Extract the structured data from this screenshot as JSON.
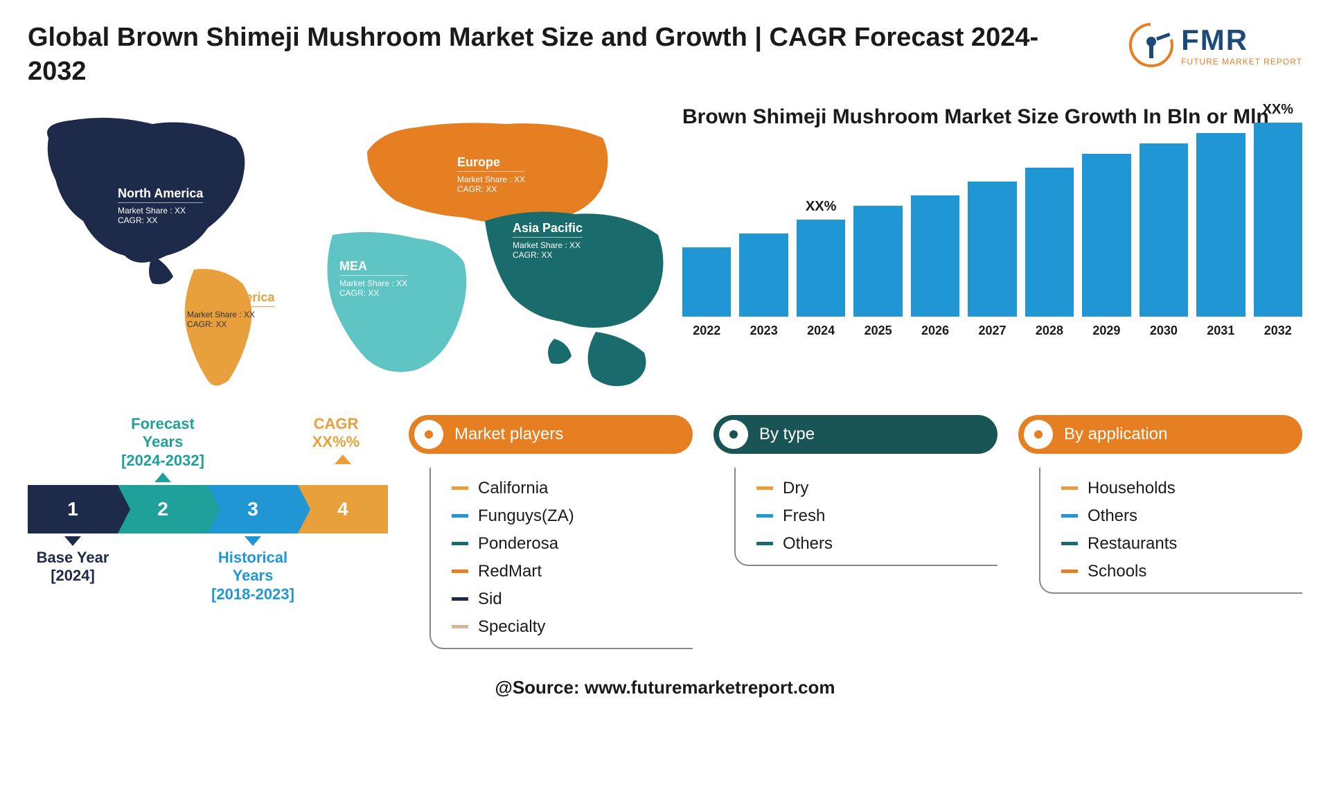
{
  "title": "Global Brown Shimeji Mushroom Market Size and Growth | CAGR Forecast 2024-2032",
  "logo": {
    "main": "FMR",
    "sub": "FUTURE MARKET REPORT"
  },
  "colors": {
    "na": "#1e2a4a",
    "sa": "#e8a03c",
    "eu": "#e67e22",
    "mea": "#5fc4c4",
    "ap": "#1a6b6b",
    "bar": "#2196d4",
    "step1": "#1e2a4a",
    "step2": "#1fa09a",
    "step3": "#2196d4",
    "step4": "#e8a03c",
    "cat1_bg": "#e67e22",
    "cat2_bg": "#1a5555",
    "cat3_bg": "#e67e22",
    "dash_colors": [
      "#e8a03c",
      "#2196d4",
      "#1a6b6b",
      "#e67e22",
      "#1e2a4a",
      "#d4b896"
    ]
  },
  "map": {
    "regions": [
      {
        "key": "na",
        "name": "North America",
        "share": "Market Share : XX",
        "cagr": "CAGR: XX"
      },
      {
        "key": "sa",
        "name": "South America",
        "share": "Market Share : XX",
        "cagr": "CAGR: XX"
      },
      {
        "key": "eu",
        "name": "Europe",
        "share": "Market Share : XX",
        "cagr": "CAGR: XX"
      },
      {
        "key": "mea",
        "name": "MEA",
        "share": "Market Share : XX",
        "cagr": "CAGR: XX"
      },
      {
        "key": "ap",
        "name": "Asia Pacific",
        "share": "Market Share : XX",
        "cagr": "CAGR: XX"
      }
    ]
  },
  "chart": {
    "title": "Brown Shimeji Mushroom Market Size Growth In Bln or Mln",
    "years": [
      "2022",
      "2023",
      "2024",
      "2025",
      "2026",
      "2027",
      "2028",
      "2029",
      "2030",
      "2031",
      "2032"
    ],
    "heights": [
      100,
      120,
      140,
      160,
      175,
      195,
      215,
      235,
      250,
      265,
      280
    ],
    "annotations": {
      "2": "XX%",
      "10": "XX%"
    },
    "bar_color": "#2196d4"
  },
  "timeline": {
    "forecast": "Forecast Years",
    "forecast_range": "[2024-2032]",
    "cagr": "CAGR",
    "cagr_val": "XX%%",
    "base": "Base Year",
    "base_range": "[2024]",
    "hist": "Historical Years",
    "hist_range": "[2018-2023]",
    "steps": [
      "1",
      "2",
      "3",
      "4"
    ]
  },
  "categories": [
    {
      "title": "Market players",
      "bg": "#e67e22",
      "items": [
        "California",
        "Funguys(ZA)",
        "Ponderosa",
        "RedMart",
        "Sid",
        "Specialty"
      ]
    },
    {
      "title": "By type",
      "bg": "#1a5555",
      "items": [
        "Dry",
        "Fresh",
        "Others"
      ]
    },
    {
      "title": "By application",
      "bg": "#e67e22",
      "items": [
        "Households",
        "Others",
        "Restaurants",
        "Schools"
      ]
    }
  ],
  "source": "@Source: www.futuremarketreport.com"
}
